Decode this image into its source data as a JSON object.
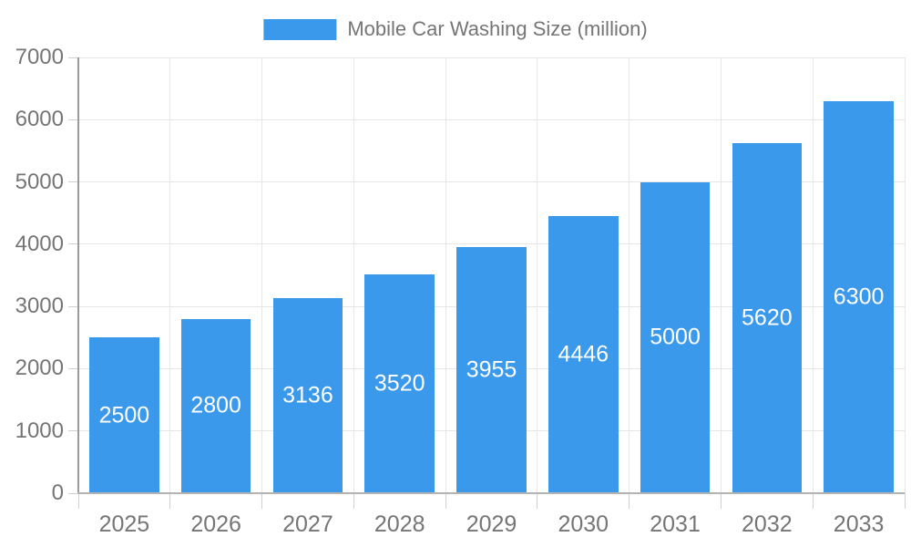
{
  "chart_data": {
    "type": "bar",
    "title": "Mobile Car Washing Size (million)",
    "legend_label": "Mobile Car Washing Size (million)",
    "legend_position": "top",
    "categories": [
      "2025",
      "2026",
      "2027",
      "2028",
      "2029",
      "2030",
      "2031",
      "2032",
      "2033"
    ],
    "values": [
      2500,
      2800,
      3136,
      3520,
      3955,
      4446,
      5000,
      5620,
      6300
    ],
    "value_labels": [
      "2500",
      "2800",
      "3136",
      "3520",
      "3955",
      "4446",
      "5000",
      "5620",
      "6300"
    ],
    "xlabel": "",
    "ylabel": "",
    "ylim": [
      0,
      7000
    ],
    "ytick_step": 1000,
    "ytick_labels": [
      "0",
      "1000",
      "2000",
      "3000",
      "4000",
      "5000",
      "6000",
      "7000"
    ],
    "grid": true,
    "colors": {
      "bar": "#3B99EC",
      "value_label": "#FFFFFF",
      "axis_text": "#757575",
      "grid_line": "#E6E6E6",
      "tick_mark": "#CFCFCF",
      "y_axis_line": "#9A9A9A",
      "x_axis_line": "#B3B3B3",
      "background": "#FFFFFF"
    }
  }
}
